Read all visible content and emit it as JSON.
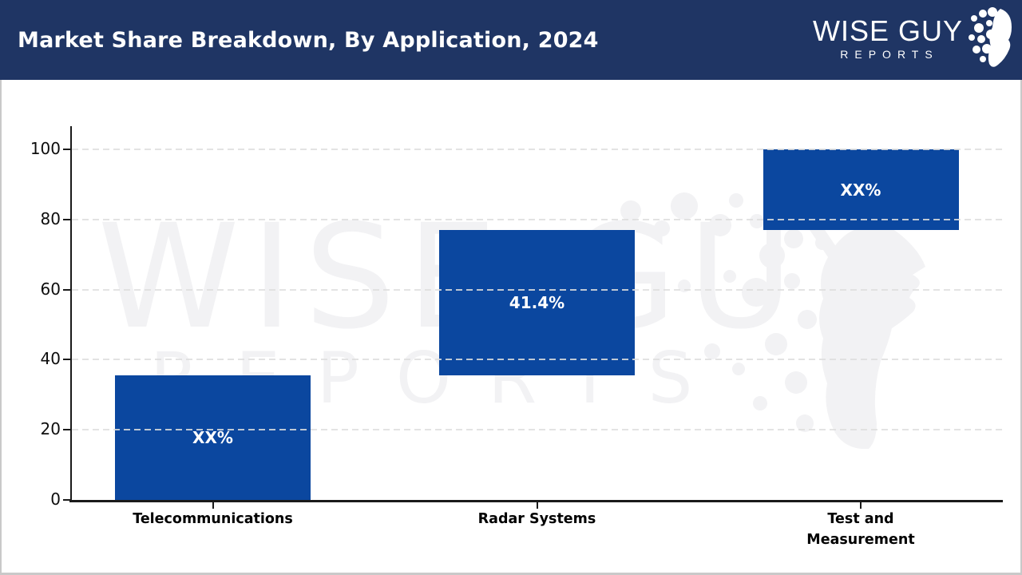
{
  "header": {
    "title": "Market Share Breakdown, By Application, 2024",
    "logo": {
      "wordmark": "WISE GUY",
      "subtitle": "REPORTS"
    }
  },
  "watermark": {
    "wordmark": "WISE GUY",
    "subtitle": "REPORTS"
  },
  "chart_data": {
    "type": "bar",
    "subtype": "stacked-waterfall-segments",
    "title": "Market Share Breakdown, By Application, 2024",
    "categories": [
      "Telecommunications",
      "Radar Systems",
      "Test and\nMeasurement"
    ],
    "segments": [
      {
        "category": "Telecommunications",
        "start": 0,
        "end": 35.5,
        "label": "XX%"
      },
      {
        "category": "Radar Systems",
        "start": 35.5,
        "end": 76.9,
        "label": "41.4%"
      },
      {
        "category": "Test and Measurement",
        "start": 76.9,
        "end": 100,
        "label": "XX%"
      }
    ],
    "yticks": [
      0,
      20,
      40,
      60,
      80,
      100
    ],
    "ylim": [
      0,
      105
    ],
    "xlabel": "",
    "ylabel": "",
    "grid": "horizontal-dashed",
    "legend": "none"
  },
  "colors": {
    "header_bg": "#1f3564",
    "bar": "#0b479f",
    "bar_label": "#ffffff",
    "watermark": "#f2f2f4",
    "axis": "#1a1a1a",
    "frame_border": "#c9c9c9"
  }
}
